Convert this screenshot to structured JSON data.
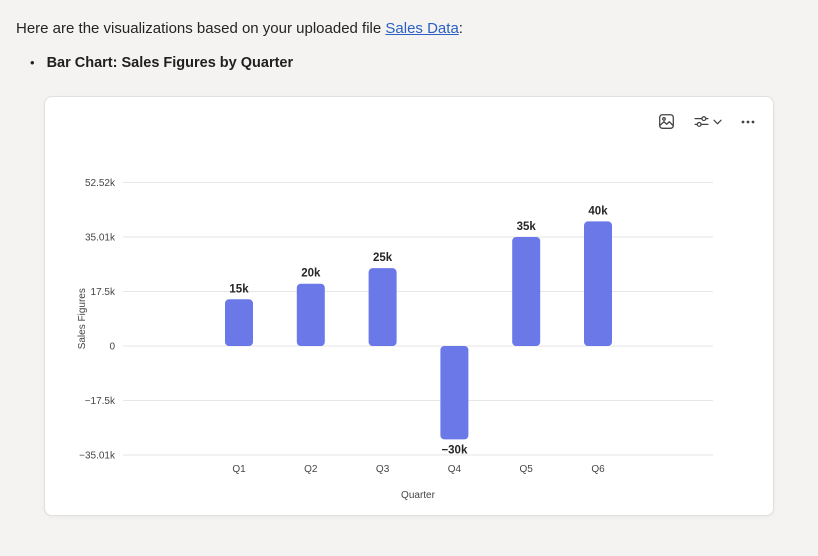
{
  "message": {
    "prefix": "Here are the visualizations based on your uploaded file ",
    "link_text": "Sales Data",
    "suffix": ":",
    "bullet_marker": "•",
    "bullet": "Bar Chart: Sales Figures by Quarter"
  },
  "toolbar": {
    "icons": [
      "image-icon",
      "sliders-icon",
      "chevron-down-icon",
      "more-options-icon"
    ]
  },
  "colors": {
    "page_background": "#f4f3f1",
    "card_background": "#ffffff",
    "link": "#2b5fc4"
  },
  "chart_data": {
    "type": "bar",
    "title": "",
    "categories": [
      "Q1",
      "Q2",
      "Q3",
      "Q4",
      "Q5",
      "Q6"
    ],
    "values": [
      15000,
      20000,
      25000,
      -30000,
      35000,
      40000
    ],
    "data_labels": [
      "15k",
      "20k",
      "25k",
      "−30k",
      "35k",
      "40k"
    ],
    "xlabel": "Quarter",
    "ylabel": "Sales Figures",
    "y_ticks": [
      {
        "value": 52520,
        "label": "52.52k"
      },
      {
        "value": 35010,
        "label": "35.01k"
      },
      {
        "value": 17500,
        "label": "17.5k"
      },
      {
        "value": 0,
        "label": "0"
      },
      {
        "value": -17500,
        "label": "−17.5k"
      },
      {
        "value": -35010,
        "label": "−35.01k"
      }
    ],
    "ylim": [
      -38000,
      57000
    ],
    "grid": true,
    "legend": false,
    "colors": {
      "bar": "#6b78e8",
      "grid": "#e6e6e6",
      "axis_text": "#454545",
      "label_text": "#262626"
    }
  }
}
